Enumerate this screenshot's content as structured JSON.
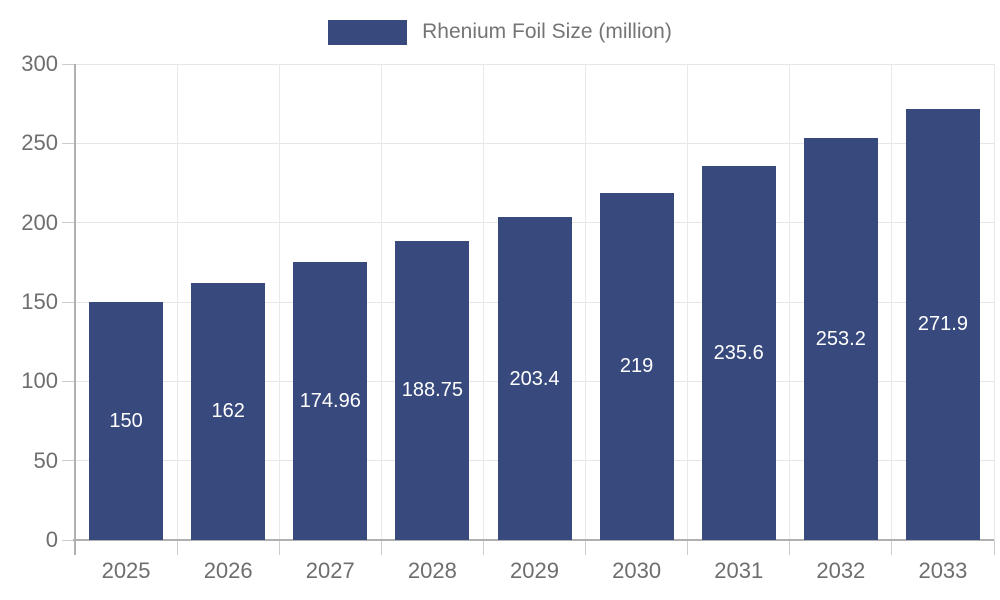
{
  "legend": {
    "label": "Rhenium Foil Size (million)"
  },
  "chart_data": {
    "type": "bar",
    "title": "Rhenium Foil Size (million)",
    "xlabel": "",
    "ylabel": "",
    "categories": [
      "2025",
      "2026",
      "2027",
      "2028",
      "2029",
      "2030",
      "2031",
      "2032",
      "2033"
    ],
    "values": [
      150,
      162,
      174.96,
      188.75,
      203.4,
      219,
      235.6,
      253.2,
      271.9
    ],
    "value_labels": [
      "150",
      "162",
      "174.96",
      "188.75",
      "203.4",
      "219",
      "235.6",
      "253.2",
      "271.9"
    ],
    "ylim": [
      0,
      300
    ],
    "yticks": [
      0,
      50,
      100,
      150,
      200,
      250,
      300
    ],
    "ytick_labels": [
      "0",
      "50",
      "100",
      "150",
      "200",
      "250",
      "300"
    ],
    "grid": true,
    "legend_position": "top",
    "bar_color": "#384a7d",
    "value_label_color": "#ffffff",
    "axis_text_color": "#6e6e6e",
    "gridline_color": "#e6e6e6",
    "axis_line_color": "#b0b0b0"
  }
}
